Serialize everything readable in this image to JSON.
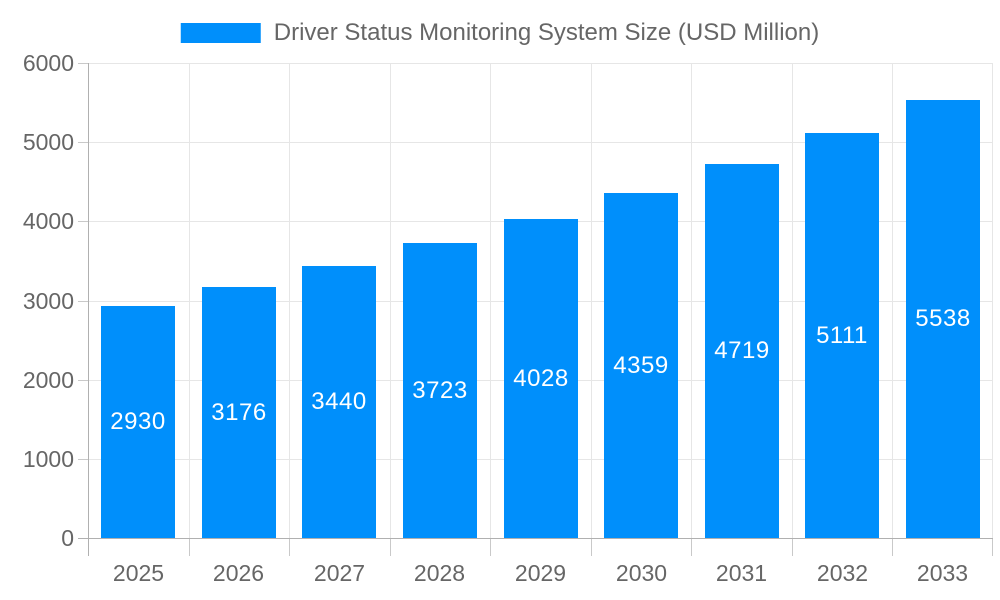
{
  "legend": {
    "series_label": "Driver Status Monitoring System Size (USD Million)"
  },
  "chart_data": {
    "type": "bar",
    "title": "Driver Status Monitoring System Size (USD Million)",
    "categories": [
      "2025",
      "2026",
      "2027",
      "2028",
      "2029",
      "2030",
      "2031",
      "2032",
      "2033"
    ],
    "values": [
      2930,
      3176,
      3440,
      3723,
      4028,
      4359,
      4719,
      5111,
      5538
    ],
    "xlabel": "",
    "ylabel": "",
    "ylim": [
      0,
      6000
    ],
    "yticks": [
      0,
      1000,
      2000,
      3000,
      4000,
      5000,
      6000
    ],
    "grid": true,
    "legend_position": "top",
    "bar_value_labels_visible": true,
    "colors": {
      "bar": "#008FFB",
      "bar_label": "#FFFFFF",
      "axis_text": "#666666",
      "grid_line": "#E6E6E6",
      "axis_line": "#B0B0B0",
      "tick_line": "#C9C9C9",
      "background": "#FFFFFF"
    }
  }
}
